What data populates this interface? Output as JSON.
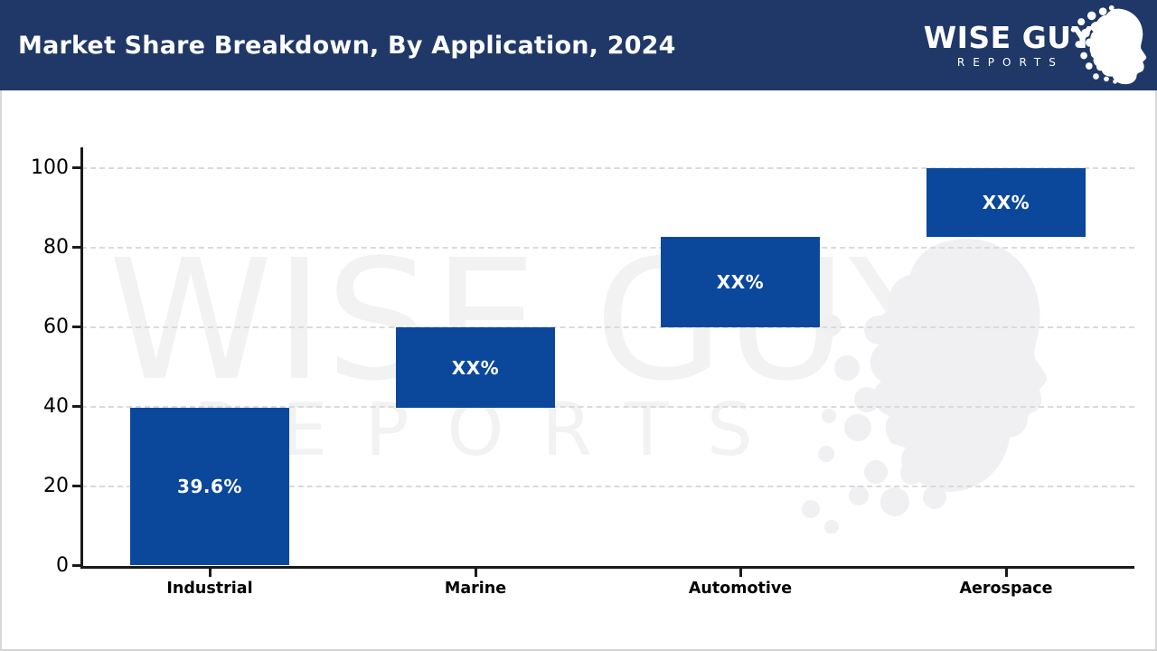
{
  "header": {
    "title": "Market Share Breakdown, By Application, 2024",
    "logo": {
      "line1": "WISE GUY",
      "line2": "REPORTS"
    }
  },
  "watermark": {
    "line1": "WISE GUY",
    "line2": "REPORTS"
  },
  "colors": {
    "header_bg": "#1F3867",
    "bar": "#0B489C",
    "axis": "#1A1A1A",
    "gridline": "#DADADA",
    "bar_label": "#FFFFFF",
    "watermark": "#F2F2F2"
  },
  "chart_data": {
    "type": "bar",
    "subtype": "floating-waterfall",
    "title": "Market Share Breakdown, By Application, 2024",
    "categories": [
      "Industrial",
      "Marine",
      "Automotive",
      "Aerospace"
    ],
    "segments": [
      {
        "category": "Industrial",
        "start": 0,
        "end": 39.6,
        "label": "39.6%"
      },
      {
        "category": "Marine",
        "start": 39.6,
        "end": 59.8,
        "label": "XX%"
      },
      {
        "category": "Automotive",
        "start": 59.8,
        "end": 82.6,
        "label": "XX%"
      },
      {
        "category": "Aerospace",
        "start": 82.6,
        "end": 100,
        "label": "XX%"
      }
    ],
    "xlabel": "",
    "ylabel": "",
    "ylim": [
      0,
      100
    ],
    "yticks": [
      0,
      20,
      40,
      60,
      80,
      100
    ],
    "grid": true,
    "grid_style": "dashed",
    "legend": false
  }
}
